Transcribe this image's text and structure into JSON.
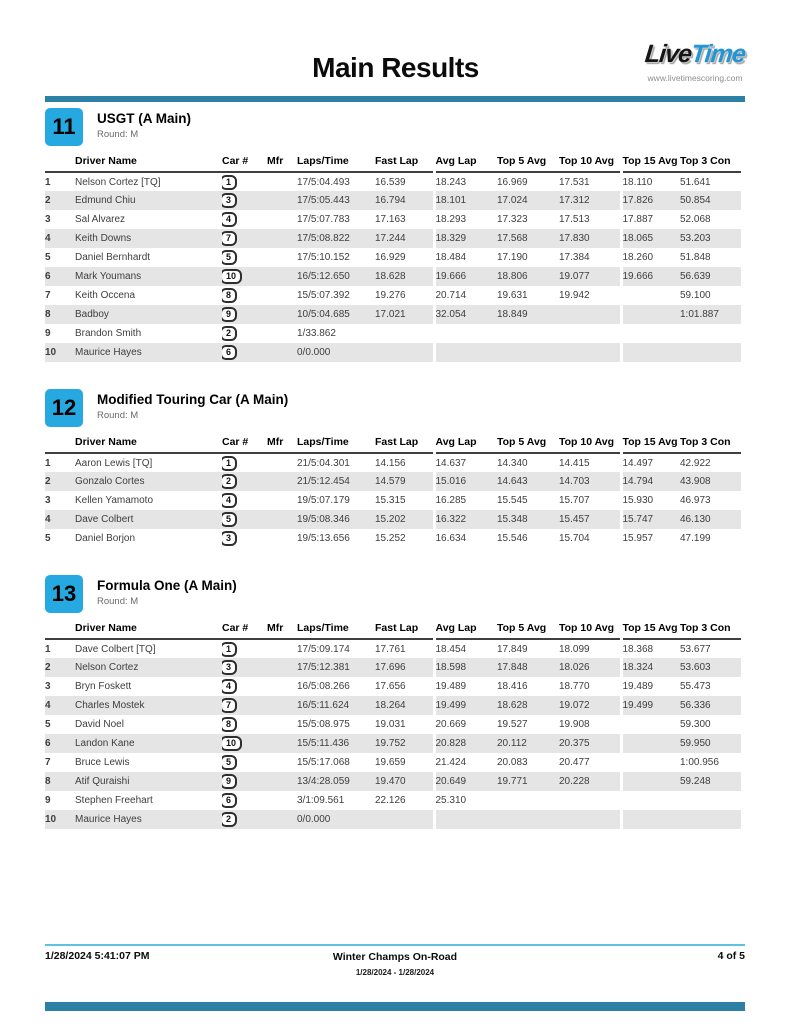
{
  "header": {
    "title": "Main Results",
    "logo": {
      "live": "Live",
      "time": "Time",
      "url": "www.livetimescoring.com"
    }
  },
  "colors": {
    "rule_blue": "#2c80a5",
    "section_badge_blue": "#25a9e0",
    "footer_rule_blue": "#5fc0e0",
    "row_stripe_gray": "#e5e5e5",
    "logo_time_blue": "#2196d6"
  },
  "columns": [
    "Driver Name",
    "Car #",
    "Mfr",
    "Laps/Time",
    "Fast Lap",
    "Avg Lap",
    "Top 5 Avg",
    "Top 10 Avg",
    "Top 15 Avg",
    "Top 3 Con"
  ],
  "sections": [
    {
      "number": "11",
      "title": "USGT (A Main)",
      "round": "Round: M",
      "rows": [
        {
          "pos": "1",
          "driver": "Nelson Cortez [TQ]",
          "car": "1",
          "laps": "17/5:04.493",
          "fast": "16.539",
          "avg": "18.243",
          "top5": "16.969",
          "top10": "17.531",
          "top15": "18.110",
          "top3": "51.641"
        },
        {
          "pos": "2",
          "driver": "Edmund Chiu",
          "car": "3",
          "laps": "17/5:05.443",
          "fast": "16.794",
          "avg": "18.101",
          "top5": "17.024",
          "top10": "17.312",
          "top15": "17.826",
          "top3": "50.854"
        },
        {
          "pos": "3",
          "driver": "Sal Alvarez",
          "car": "4",
          "laps": "17/5:07.783",
          "fast": "17.163",
          "avg": "18.293",
          "top5": "17.323",
          "top10": "17.513",
          "top15": "17.887",
          "top3": "52.068"
        },
        {
          "pos": "4",
          "driver": "Keith Downs",
          "car": "7",
          "laps": "17/5:08.822",
          "fast": "17.244",
          "avg": "18.329",
          "top5": "17.568",
          "top10": "17.830",
          "top15": "18.065",
          "top3": "53.203"
        },
        {
          "pos": "5",
          "driver": "Daniel Bernhardt",
          "car": "5",
          "laps": "17/5:10.152",
          "fast": "16.929",
          "avg": "18.484",
          "top5": "17.190",
          "top10": "17.384",
          "top15": "18.260",
          "top3": "51.848"
        },
        {
          "pos": "6",
          "driver": "Mark Youmans",
          "car": "10",
          "laps": "16/5:12.650",
          "fast": "18.628",
          "avg": "19.666",
          "top5": "18.806",
          "top10": "19.077",
          "top15": "19.666",
          "top3": "56.639"
        },
        {
          "pos": "7",
          "driver": "Keith Occena",
          "car": "8",
          "laps": "15/5:07.392",
          "fast": "19.276",
          "avg": "20.714",
          "top5": "19.631",
          "top10": "19.942",
          "top15": "",
          "top3": "59.100"
        },
        {
          "pos": "8",
          "driver": "Badboy",
          "car": "9",
          "laps": "10/5:04.685",
          "fast": "17.021",
          "avg": "32.054",
          "top5": "18.849",
          "top10": "",
          "top15": "",
          "top3": "1:01.887"
        },
        {
          "pos": "9",
          "driver": "Brandon Smith",
          "car": "2",
          "laps": "1/33.862",
          "fast": "",
          "avg": "",
          "top5": "",
          "top10": "",
          "top15": "",
          "top3": ""
        },
        {
          "pos": "10",
          "driver": "Maurice Hayes",
          "car": "6",
          "laps": "0/0.000",
          "fast": "",
          "avg": "",
          "top5": "",
          "top10": "",
          "top15": "",
          "top3": ""
        }
      ]
    },
    {
      "number": "12",
      "title": "Modified Touring Car (A Main)",
      "round": "Round: M",
      "rows": [
        {
          "pos": "1",
          "driver": "Aaron Lewis [TQ]",
          "car": "1",
          "laps": "21/5:04.301",
          "fast": "14.156",
          "avg": "14.637",
          "top5": "14.340",
          "top10": "14.415",
          "top15": "14.497",
          "top3": "42.922"
        },
        {
          "pos": "2",
          "driver": "Gonzalo Cortes",
          "car": "2",
          "laps": "21/5:12.454",
          "fast": "14.579",
          "avg": "15.016",
          "top5": "14.643",
          "top10": "14.703",
          "top15": "14.794",
          "top3": "43.908"
        },
        {
          "pos": "3",
          "driver": "Kellen Yamamoto",
          "car": "4",
          "laps": "19/5:07.179",
          "fast": "15.315",
          "avg": "16.285",
          "top5": "15.545",
          "top10": "15.707",
          "top15": "15.930",
          "top3": "46.973"
        },
        {
          "pos": "4",
          "driver": "Dave Colbert",
          "car": "5",
          "laps": "19/5:08.346",
          "fast": "15.202",
          "avg": "16.322",
          "top5": "15.348",
          "top10": "15.457",
          "top15": "15.747",
          "top3": "46.130"
        },
        {
          "pos": "5",
          "driver": "Daniel Borjon",
          "car": "3",
          "laps": "19/5:13.656",
          "fast": "15.252",
          "avg": "16.634",
          "top5": "15.546",
          "top10": "15.704",
          "top15": "15.957",
          "top3": "47.199"
        }
      ]
    },
    {
      "number": "13",
      "title": "Formula One (A Main)",
      "round": "Round: M",
      "rows": [
        {
          "pos": "1",
          "driver": "Dave Colbert [TQ]",
          "car": "1",
          "laps": "17/5:09.174",
          "fast": "17.761",
          "avg": "18.454",
          "top5": "17.849",
          "top10": "18.099",
          "top15": "18.368",
          "top3": "53.677"
        },
        {
          "pos": "2",
          "driver": "Nelson Cortez",
          "car": "3",
          "laps": "17/5:12.381",
          "fast": "17.696",
          "avg": "18.598",
          "top5": "17.848",
          "top10": "18.026",
          "top15": "18.324",
          "top3": "53.603"
        },
        {
          "pos": "3",
          "driver": "Bryn Foskett",
          "car": "4",
          "laps": "16/5:08.266",
          "fast": "17.656",
          "avg": "19.489",
          "top5": "18.416",
          "top10": "18.770",
          "top15": "19.489",
          "top3": "55.473"
        },
        {
          "pos": "4",
          "driver": "Charles Mostek",
          "car": "7",
          "laps": "16/5:11.624",
          "fast": "18.264",
          "avg": "19.499",
          "top5": "18.628",
          "top10": "19.072",
          "top15": "19.499",
          "top3": "56.336"
        },
        {
          "pos": "5",
          "driver": "David Noel",
          "car": "8",
          "laps": "15/5:08.975",
          "fast": "19.031",
          "avg": "20.669",
          "top5": "19.527",
          "top10": "19.908",
          "top15": "",
          "top3": "59.300"
        },
        {
          "pos": "6",
          "driver": "Landon Kane",
          "car": "10",
          "laps": "15/5:11.436",
          "fast": "19.752",
          "avg": "20.828",
          "top5": "20.112",
          "top10": "20.375",
          "top15": "",
          "top3": "59.950"
        },
        {
          "pos": "7",
          "driver": "Bruce Lewis",
          "car": "5",
          "laps": "15/5:17.068",
          "fast": "19.659",
          "avg": "21.424",
          "top5": "20.083",
          "top10": "20.477",
          "top15": "",
          "top3": "1:00.956"
        },
        {
          "pos": "8",
          "driver": "Atif Quraishi",
          "car": "9",
          "laps": "13/4:28.059",
          "fast": "19.470",
          "avg": "20.649",
          "top5": "19.771",
          "top10": "20.228",
          "top15": "",
          "top3": "59.248"
        },
        {
          "pos": "9",
          "driver": "Stephen Freehart",
          "car": "6",
          "laps": "3/1:09.561",
          "fast": "22.126",
          "avg": "25.310",
          "top5": "",
          "top10": "",
          "top15": "",
          "top3": ""
        },
        {
          "pos": "10",
          "driver": "Maurice Hayes",
          "car": "2",
          "laps": "0/0.000",
          "fast": "",
          "avg": "",
          "top5": "",
          "top10": "",
          "top15": "",
          "top3": ""
        }
      ]
    }
  ],
  "footer": {
    "timestamp": "1/28/2024 5:41:07 PM",
    "event": "Winter Champs On-Road",
    "date_range": "1/28/2024 - 1/28/2024",
    "page": "4 of 5"
  }
}
